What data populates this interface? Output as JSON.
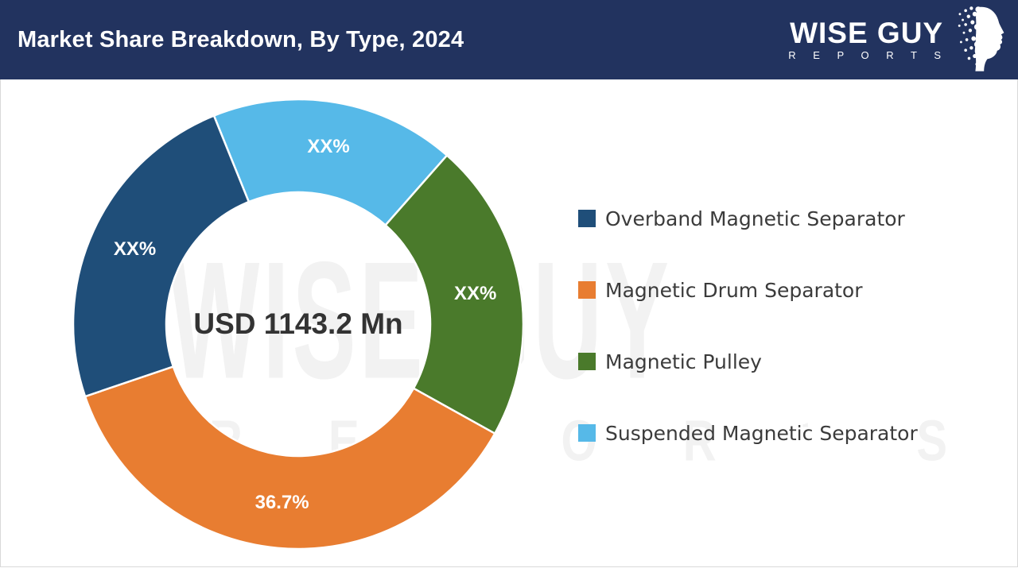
{
  "header": {
    "title": "Market Share Breakdown, By Type, 2024",
    "logo": {
      "line1": "WISE GUY",
      "line2": "R E P O R T S"
    }
  },
  "watermark": {
    "line1": "WISE GUY",
    "line2": "R E P O R T S"
  },
  "chart_data": {
    "type": "pie",
    "donut": true,
    "title": "Market Share Breakdown, By Type, 2024",
    "center_label": "USD 1143.2 Mn",
    "total_value_usd_mn": 1143.2,
    "legend_position": "right",
    "rotation_deg_from_top": -22,
    "draw_order": [
      3,
      2,
      1,
      0
    ],
    "segments": [
      {
        "label": "Overband Magnetic Separator",
        "display_label": "XX%",
        "share_pct_est": 24.1,
        "masked": true,
        "color": "#1F4E79"
      },
      {
        "label": "Magnetic Drum Separator",
        "display_label": "36.7%",
        "share_pct_est": 36.7,
        "masked": false,
        "color": "#E87D31"
      },
      {
        "label": "Magnetic Pulley",
        "display_label": "XX%",
        "share_pct_est": 21.6,
        "masked": true,
        "color": "#4A7A2B"
      },
      {
        "label": "Suspended Magnetic Separator",
        "display_label": "XX%",
        "share_pct_est": 17.6,
        "masked": true,
        "color": "#56B9E8"
      }
    ],
    "colors": {
      "header_bg": "#22335F",
      "frame_line": "#D9D9D9",
      "watermark": "#F2F2F2",
      "center_text": "#333333",
      "legend_text": "#3B3B3B"
    }
  }
}
